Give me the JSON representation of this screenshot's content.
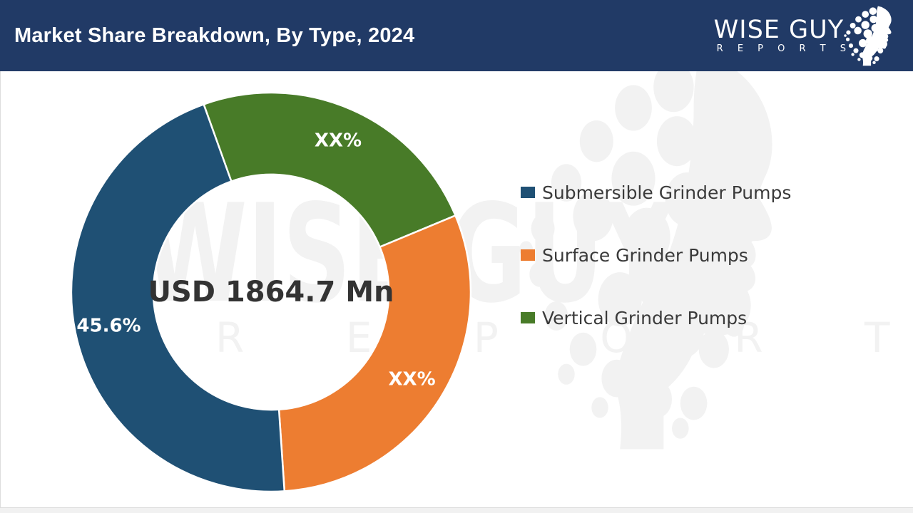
{
  "header": {
    "title": "Market Share Breakdown, By Type, 2024",
    "logo": {
      "name": "WISE GUY",
      "sub": "R E P O R T S"
    }
  },
  "watermark": {
    "text": "WISE GUY",
    "sub": "R E P O R T S"
  },
  "chart_data": {
    "type": "donut",
    "title": "Market Share Breakdown, By Type, 2024",
    "center_label": "USD 1864.7 Mn",
    "start_angle_deg": -19.7,
    "direction": "clockwise",
    "inner_radius_ratio": 0.59,
    "label_radius_ratio": 0.83,
    "segments": [
      {
        "name": "Vertical Grinder Pumps",
        "value_pct": 24.2,
        "label": "XX%",
        "color": "#487B28"
      },
      {
        "name": "Surface Grinder Pumps",
        "value_pct": 30.2,
        "label": "XX%",
        "color": "#ED7D31"
      },
      {
        "name": "Submersible Grinder Pumps",
        "value_pct": 45.6,
        "label": "45.6%",
        "color": "#1F5074"
      }
    ],
    "legend_position": "right"
  },
  "legend": {
    "items": [
      {
        "label": "Submersible Grinder Pumps",
        "color": "#1F5074"
      },
      {
        "label": "Surface Grinder Pumps",
        "color": "#ED7D31"
      },
      {
        "label": "Vertical Grinder Pumps",
        "color": "#487B28"
      }
    ]
  }
}
